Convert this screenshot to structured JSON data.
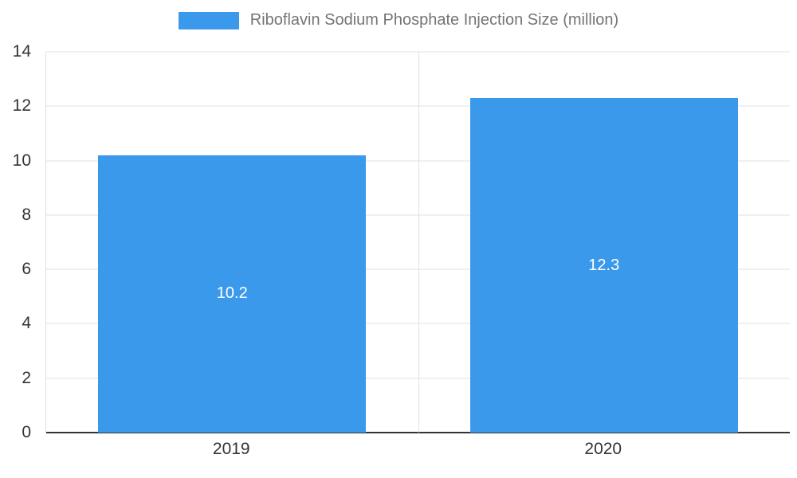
{
  "chart_data": {
    "type": "bar",
    "title": "Riboflavin Sodium Phosphate Injection Size (million)",
    "categories": [
      "2019",
      "2020"
    ],
    "values": [
      10.2,
      12.3
    ],
    "ylim": [
      0,
      14
    ],
    "yticks": [
      0,
      2,
      4,
      6,
      8,
      10,
      12,
      14
    ],
    "grid": true,
    "legend_position": "top",
    "bar_width_fraction": 0.72,
    "xlabel": "",
    "ylabel": ""
  },
  "colors": {
    "bar": "#3B99EC",
    "grid": "#E0E0E0",
    "axis": "#333333",
    "tick_text": "#333333",
    "legend_text": "#757575",
    "value_text": "#FFFFFF",
    "background": "#FFFFFF"
  }
}
